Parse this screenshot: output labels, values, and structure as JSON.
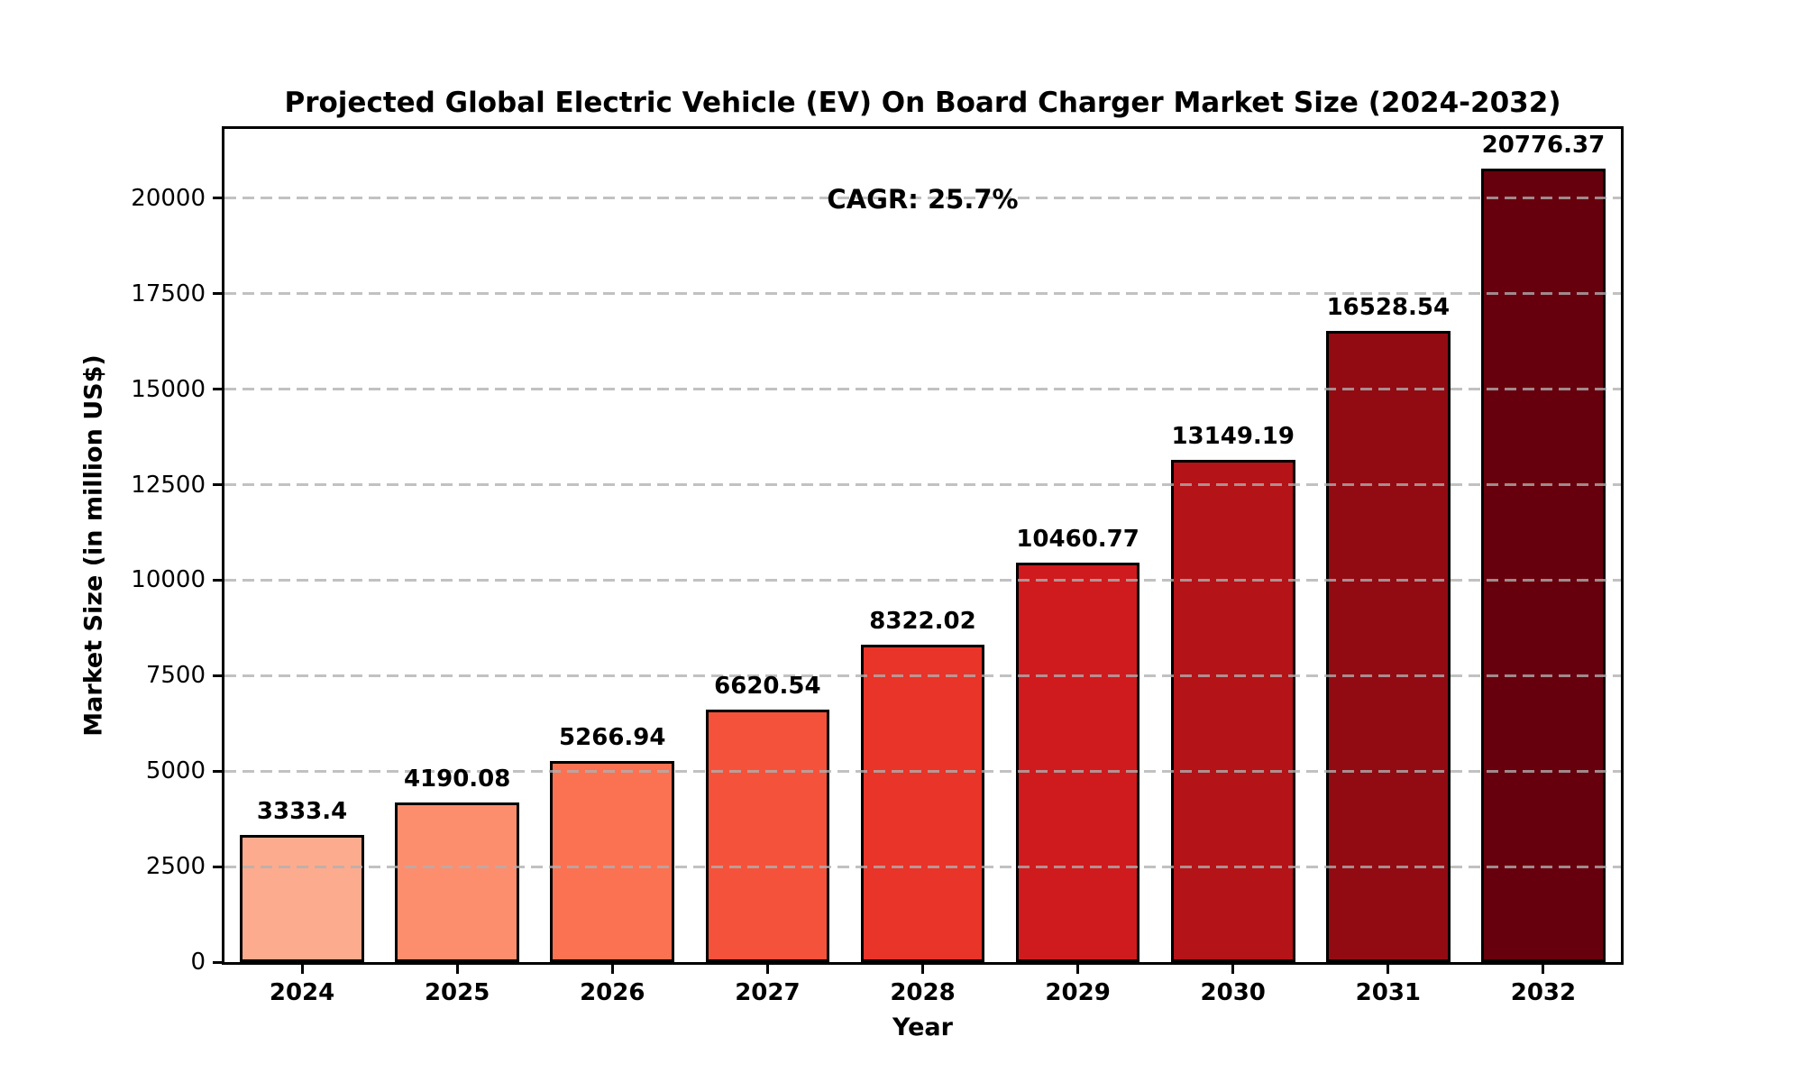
{
  "chart_data": {
    "type": "bar",
    "title": "Projected Global Electric Vehicle (EV) On Board Charger Market Size (2024-2032)",
    "xlabel": "Year",
    "ylabel": "Market Size (in million US$)",
    "annotation": "CAGR: 25.7%",
    "categories": [
      "2024",
      "2025",
      "2026",
      "2027",
      "2028",
      "2029",
      "2030",
      "2031",
      "2032"
    ],
    "values": [
      3333.4,
      4190.08,
      5266.94,
      6620.54,
      8322.02,
      10460.77,
      13149.19,
      16528.54,
      20776.37
    ],
    "bar_colors": [
      "#fcab8e",
      "#fc8e6e",
      "#fb7252",
      "#f5523b",
      "#e83429",
      "#cf1b1e",
      "#b41318",
      "#920b13",
      "#67000d"
    ],
    "bar_edge_color": "#000000",
    "yticks": [
      0,
      2500,
      5000,
      7500,
      10000,
      12500,
      15000,
      17500,
      20000
    ],
    "ylim": [
      0,
      21815
    ],
    "grid": "horizontal dashed, drawn above bars",
    "grid_color": "#b0b0b0",
    "legend": "none",
    "background_color": "#ffffff"
  }
}
